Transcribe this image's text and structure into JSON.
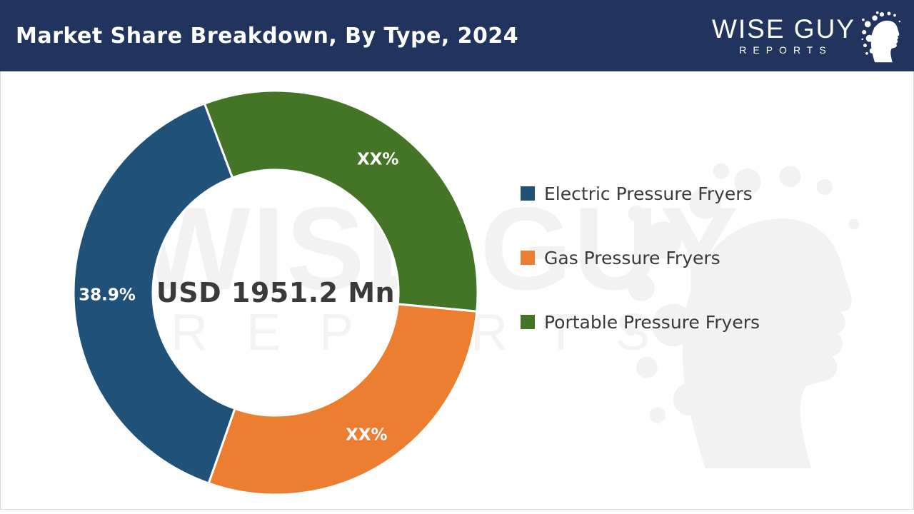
{
  "header": {
    "title": "Market Share Breakdown, By Type, 2024",
    "logo": {
      "line1": "WISE GUY",
      "line2": "REPORTS"
    }
  },
  "watermark": {
    "line1": "WISE GUY",
    "line2": "REPORTS"
  },
  "chart_data": {
    "type": "pie",
    "donut": true,
    "title": "Market Share Breakdown, By Type, 2024",
    "center_label": "USD 1951.2 Mn",
    "legend_position": "right",
    "start_angle_deg": -20.6,
    "draw_order": [
      2,
      1,
      0
    ],
    "slices": [
      {
        "label": "Electric Pressure Fryers",
        "value": 38.9,
        "display": "38.9%",
        "color": "#205178"
      },
      {
        "label": "Gas Pressure Fryers",
        "value": 28.9,
        "display": "XX%",
        "color": "#ec7e31"
      },
      {
        "label": "Portable Pressure Fryers",
        "value": 32.2,
        "display": "XX%",
        "color": "#447527"
      }
    ]
  },
  "colors": {
    "header_bg": "#20345e",
    "text_dark": "#3a3a3a",
    "watermark": "#f2f2f2",
    "border": "#d7d7d7"
  }
}
